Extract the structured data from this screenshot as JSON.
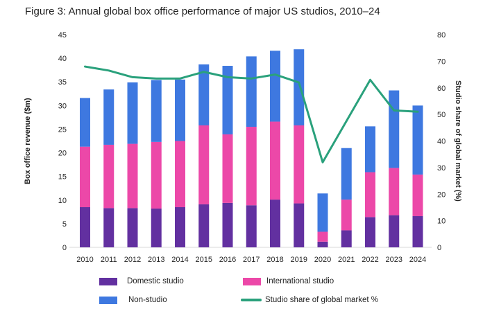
{
  "figure": {
    "title": "Figure 3: Annual global box office performance of major US studios, 2010–24"
  },
  "colors": {
    "domestic": "#6230a0",
    "international": "#ec48a8",
    "non_studio": "#3e78e0",
    "share_line": "#2aa17c",
    "axis_line": "#d9d9d9",
    "text": "#262626"
  },
  "chart_data": {
    "type": "bar",
    "subtype": "stacked-bar-with-line",
    "title": "Figure 3: Annual global box office performance of major US studios, 2010–24",
    "categories": [
      "2010",
      "2011",
      "2012",
      "2013",
      "2014",
      "2015",
      "2016",
      "2017",
      "2018",
      "2019",
      "2020",
      "2021",
      "2022",
      "2023",
      "2024"
    ],
    "series": [
      {
        "name": "Domestic studio",
        "type": "bar",
        "axis": "left",
        "color": "#6230a0",
        "values": [
          8.5,
          8.3,
          8.3,
          8.2,
          8.5,
          9.1,
          9.4,
          8.9,
          10.1,
          9.3,
          1.2,
          3.6,
          6.4,
          6.8,
          6.6
        ]
      },
      {
        "name": "International studio",
        "type": "bar",
        "axis": "left",
        "color": "#ec48a8",
        "values": [
          12.8,
          13.4,
          13.6,
          14.1,
          14.0,
          16.7,
          14.5,
          16.6,
          16.5,
          16.5,
          2.1,
          6.5,
          9.5,
          10.0,
          8.8
        ]
      },
      {
        "name": "Non-studio",
        "type": "bar",
        "axis": "left",
        "color": "#3e78e0",
        "values": [
          10.3,
          11.7,
          13.0,
          13.1,
          13.0,
          12.9,
          14.5,
          14.9,
          15.0,
          16.1,
          8.1,
          10.9,
          9.7,
          16.4,
          14.6
        ]
      },
      {
        "name": "Studio share of global market %",
        "type": "line",
        "axis": "right",
        "color": "#2aa17c",
        "values": [
          68,
          66.5,
          64,
          63.5,
          63.5,
          66,
          64,
          63.5,
          65,
          62,
          32,
          47.5,
          63,
          51.5,
          51
        ]
      }
    ],
    "stacked": true,
    "left_axis": {
      "label": "Box office revenue ($m)",
      "min": 0,
      "max": 45,
      "step": 5
    },
    "right_axis": {
      "label": "Studio share of global market (%)",
      "min": 0,
      "max": 80,
      "step": 10
    },
    "grid": false,
    "legend_position": "bottom"
  }
}
